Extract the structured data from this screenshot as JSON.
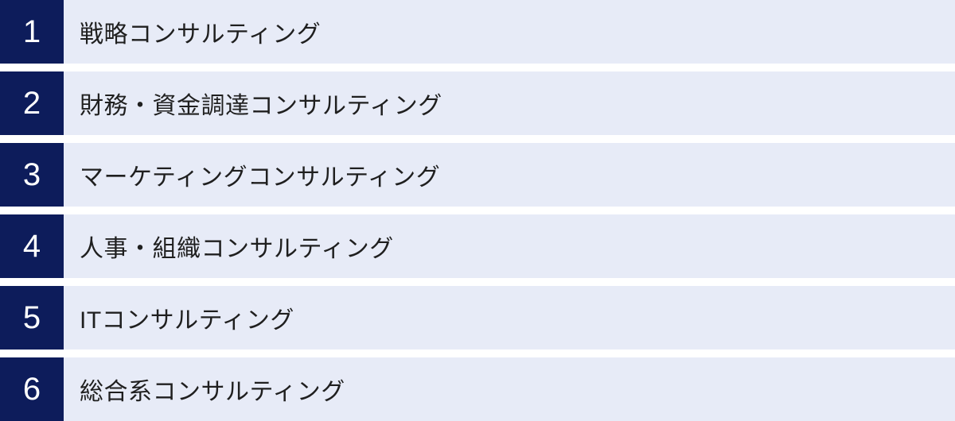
{
  "list": {
    "name": "consulting-types",
    "items": [
      {
        "number": "1",
        "label": "戦略コンサルティング"
      },
      {
        "number": "2",
        "label": "財務・資金調達コンサルティング"
      },
      {
        "number": "3",
        "label": "マーケティングコンサルティング"
      },
      {
        "number": "4",
        "label": "人事・組織コンサルティング"
      },
      {
        "number": "5",
        "label": "ITコンサルティング"
      },
      {
        "number": "6",
        "label": "総合系コンサルティング"
      }
    ]
  },
  "colors": {
    "number_box_background": "#0d1c5b",
    "number_text": "#ffffff",
    "row_background": "#e7ebf7",
    "label_text": "#1f1f1f",
    "gap_background": "#ffffff"
  }
}
